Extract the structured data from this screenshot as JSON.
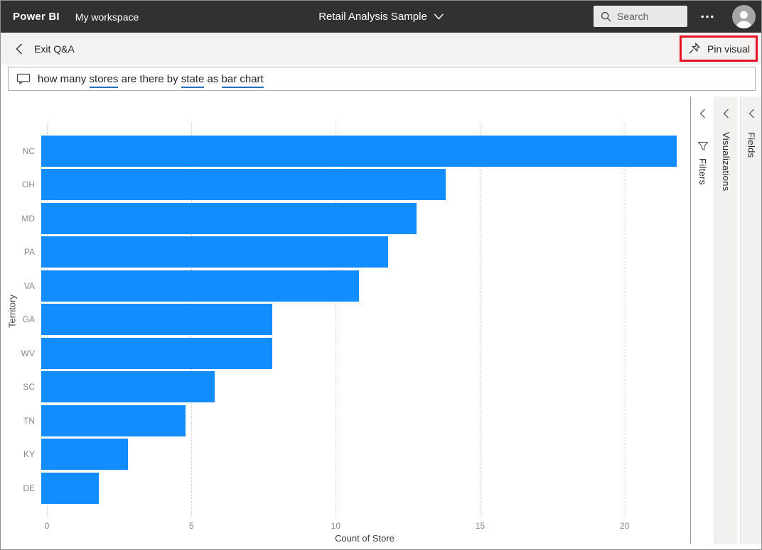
{
  "topbar": {
    "brand": "Power BI",
    "workspace": "My workspace",
    "report_title": "Retail Analysis Sample",
    "search_placeholder": "Search"
  },
  "toolbar": {
    "exit_label": "Exit Q&A",
    "pin_label": "Pin visual",
    "highlight_color": "#e81123"
  },
  "qna": {
    "query_segments": [
      {
        "text": "how many ",
        "underline": false
      },
      {
        "text": "stores",
        "underline": true
      },
      {
        "text": " are there by ",
        "underline": false
      },
      {
        "text": "state",
        "underline": true
      },
      {
        "text": " as ",
        "underline": false
      },
      {
        "text": "bar chart",
        "underline": true
      }
    ],
    "underline_color": "#2271b8"
  },
  "chart_data": {
    "type": "bar",
    "orientation": "horizontal",
    "title": "",
    "categories": [
      "NC",
      "OH",
      "MD",
      "PA",
      "VA",
      "GA",
      "WV",
      "SC",
      "TN",
      "KY",
      "DE"
    ],
    "values": [
      22,
      14,
      13,
      12,
      11,
      8,
      8,
      6,
      5,
      3,
      2
    ],
    "xlabel": "Count of Store",
    "ylabel": "Territory",
    "xlim": [
      0,
      22
    ],
    "xticks": [
      0,
      5,
      10,
      15,
      20
    ],
    "bar_color": "#118DFF",
    "grid": "dotted-vertical",
    "legend": "none"
  },
  "panels": {
    "filters": "Filters",
    "visualizations": "Visualizations",
    "fields": "Fields"
  }
}
